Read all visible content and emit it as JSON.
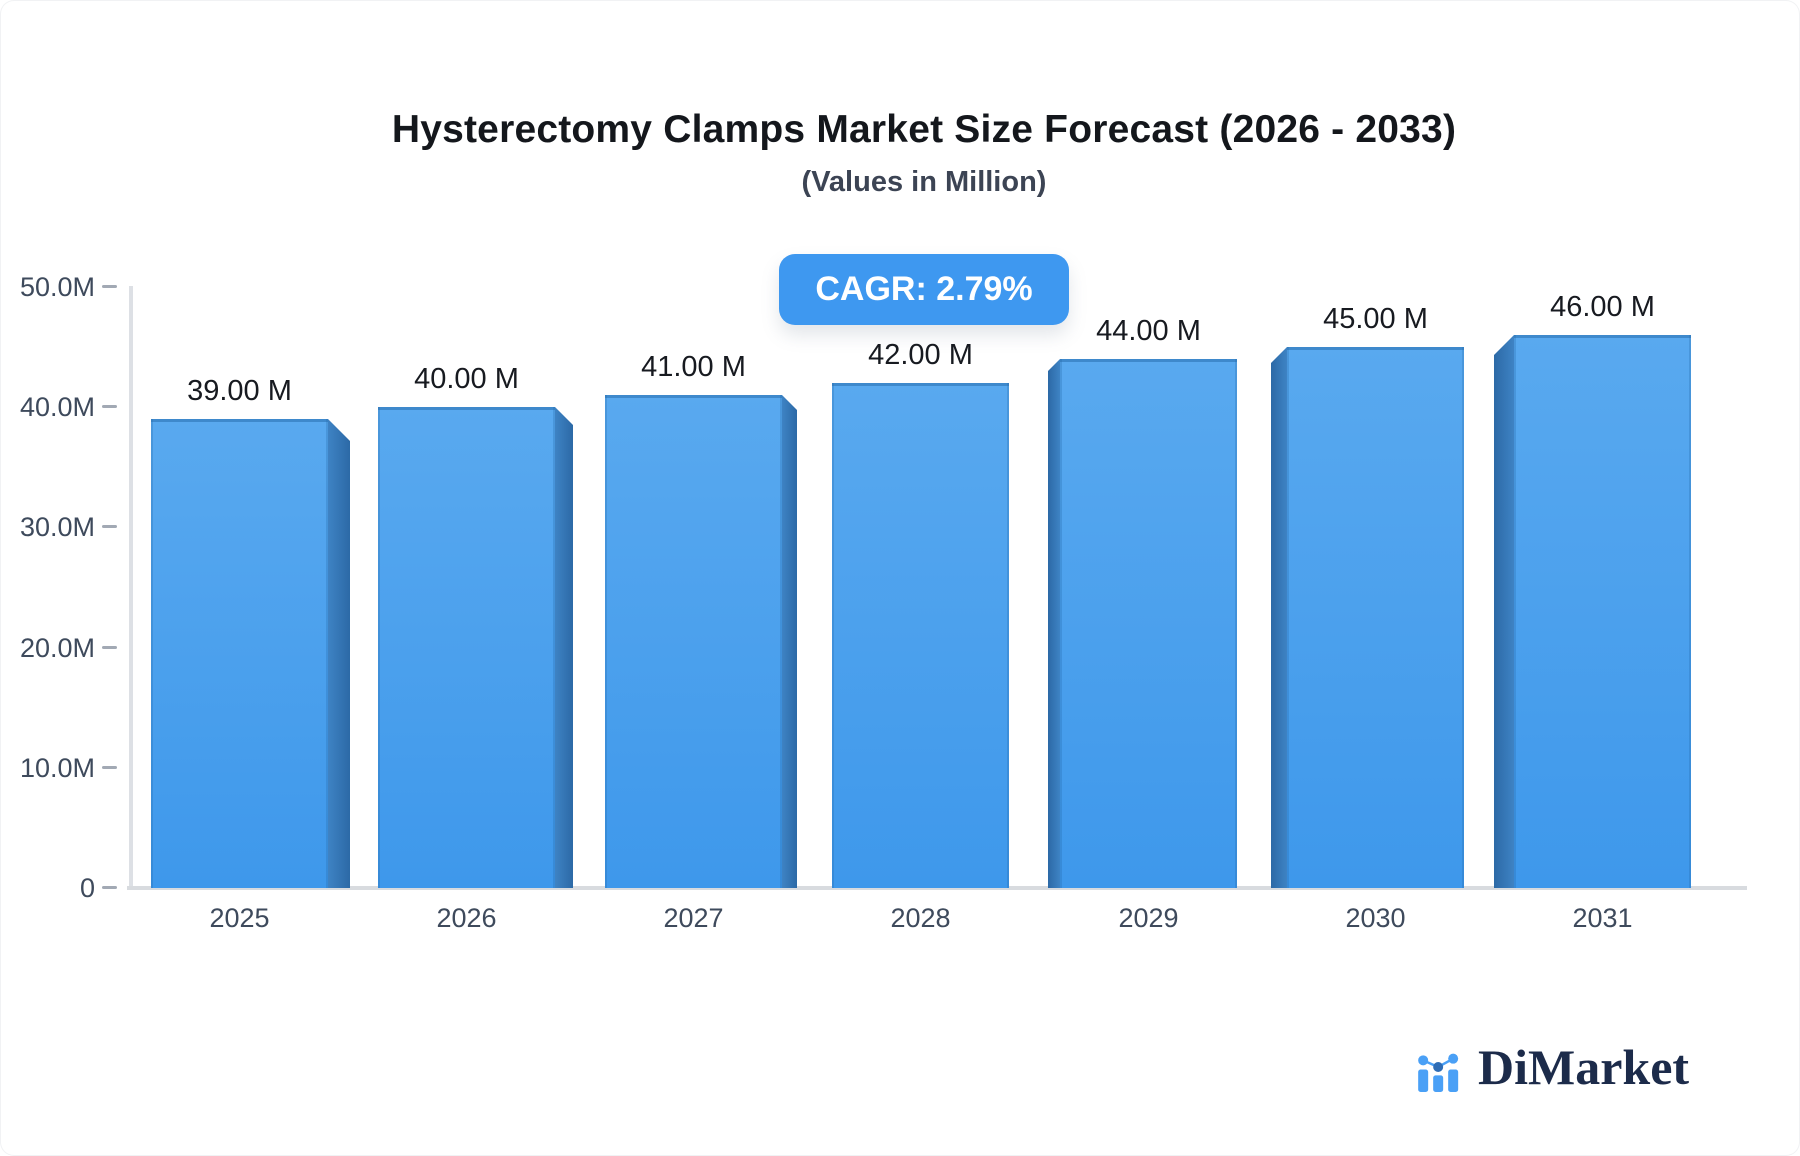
{
  "header": {
    "title": "Hysterectomy Clamps Market Size Forecast (2026 - 2033)",
    "subtitle": "(Values in Million)"
  },
  "badge": {
    "label": "CAGR: 2.79%",
    "bg_color": "#3e98f0",
    "text_color": "#ffffff"
  },
  "chart_data": {
    "type": "bar",
    "title": "Hysterectomy Clamps Market Size Forecast (2026 - 2033)",
    "subtitle": "(Values in Million)",
    "cagr_label": "CAGR: 2.79%",
    "categories": [
      "2025",
      "2026",
      "2027",
      "2028",
      "2029",
      "2030",
      "2031"
    ],
    "values": [
      39,
      40,
      41,
      42,
      44,
      45,
      46
    ],
    "value_labels": [
      "39.00 M",
      "40.00 M",
      "41.00 M",
      "42.00 M",
      "44.00 M",
      "45.00 M",
      "46.00 M"
    ],
    "xlabel": "",
    "ylabel": "",
    "ylim": [
      0,
      50
    ],
    "yticks": [
      {
        "label": "50.0M",
        "value": 50
      },
      {
        "label": "40.0M",
        "value": 40
      },
      {
        "label": "30.0M",
        "value": 30
      },
      {
        "label": "20.0M",
        "value": 20
      },
      {
        "label": "10.0M",
        "value": 10
      },
      {
        "label": "0",
        "value": 0
      }
    ],
    "grid": false,
    "legend_position": "none",
    "style": {
      "bar_fill_top": "#59a9ef",
      "bar_fill_bottom": "#3e98eb",
      "bar_side_dark": "#2c69a6",
      "bar_side_light": "#3e83c4",
      "bar_edge": "rgba(35,105,170,0.5)",
      "axis_line_color": "#dde0e5",
      "baseline_color": "#d8dbdf",
      "tick_color": "#a2a9b4",
      "axis_label_color": "#3e4a5c",
      "value_label_color": "#171a20"
    }
  },
  "logo": {
    "name": "DiMarket",
    "icon": "bar-chart-logo-icon",
    "text_color": "#1c2b4a",
    "icon_color": "#4aa0f6",
    "icon_dot_color": "#2e6cb5"
  }
}
